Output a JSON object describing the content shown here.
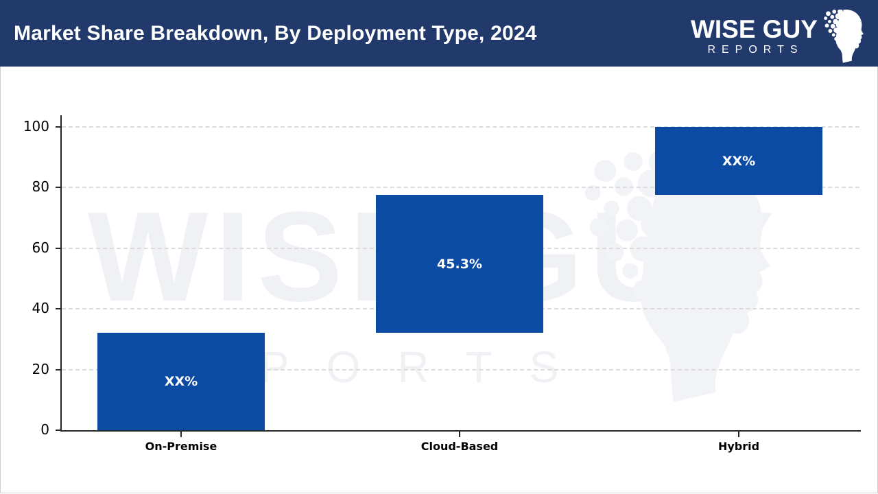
{
  "header": {
    "title": "Market Share Breakdown, By Deployment Type, 2024",
    "brand": {
      "line1": "WISE GUY",
      "line2": "REPORTS"
    }
  },
  "watermark": {
    "line1": "WISE GUY",
    "line2": "REPORTS"
  },
  "chart_data": {
    "type": "bar",
    "subtype": "waterfall",
    "title": "Market Share Breakdown, By Deployment Type, 2024",
    "categories": [
      "On-Premise",
      "Cloud-Based",
      "Hybrid"
    ],
    "segments": [
      {
        "category": "On-Premise",
        "start": 0,
        "end": 32.2,
        "label": "XX%"
      },
      {
        "category": "Cloud-Based",
        "start": 32.2,
        "end": 77.5,
        "label": "45.3%"
      },
      {
        "category": "Hybrid",
        "start": 77.5,
        "end": 100,
        "label": "XX%"
      }
    ],
    "ylim": [
      0,
      100
    ],
    "yticks": [
      0,
      20,
      40,
      60,
      80,
      100
    ],
    "grid": "horizontal-dashed",
    "legend": "none",
    "bar_color": "#0C4BA4",
    "bar_label_color": "#ffffff",
    "axis_color": "#262626"
  }
}
